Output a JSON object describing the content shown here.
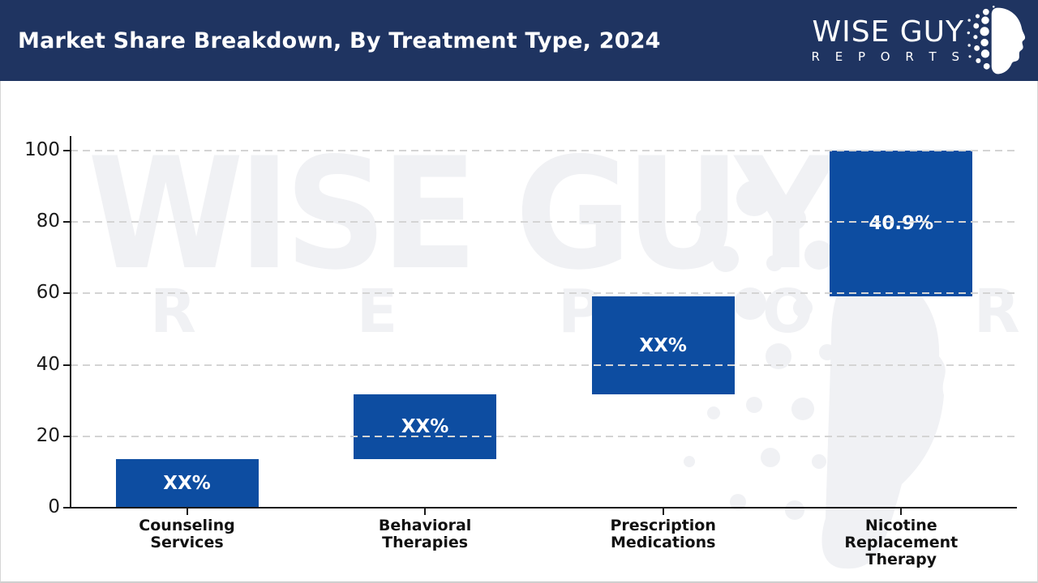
{
  "header": {
    "title": "Market Share Breakdown, By Treatment Type, 2024",
    "logo_line1": "WISE GUY",
    "logo_line2": "R E P O R T S",
    "bg_color": "#1f3461"
  },
  "watermark": {
    "line1": "WISE GUY",
    "line2": "R E P O R T S"
  },
  "chart_data": {
    "type": "bar",
    "variant": "waterfall",
    "title": "Market Share Breakdown, By Treatment Type, 2024",
    "categories": [
      "Counseling\nServices",
      "Behavioral\nTherapies",
      "Prescription\nMedications",
      "Nicotine\nReplacement\nTherapy"
    ],
    "segments": [
      {
        "category": "Counseling Services",
        "start": 0,
        "end": 13.6,
        "label": "XX%"
      },
      {
        "category": "Behavioral Therapies",
        "start": 13.6,
        "end": 31.8,
        "label": "XX%"
      },
      {
        "category": "Prescription Medications",
        "start": 31.8,
        "end": 59.1,
        "label": "XX%"
      },
      {
        "category": "Nicotine Replacement Therapy",
        "start": 59.1,
        "end": 100.0,
        "label": "40.9%"
      }
    ],
    "yticks": [
      0,
      20,
      40,
      60,
      80,
      100
    ],
    "ylim": [
      0,
      100
    ],
    "xlabel": "",
    "ylabel": "",
    "bar_color": "#0d4da1",
    "bar_label_color": "#ffffff",
    "grid": "horizontal-dashed",
    "legend": "none"
  }
}
